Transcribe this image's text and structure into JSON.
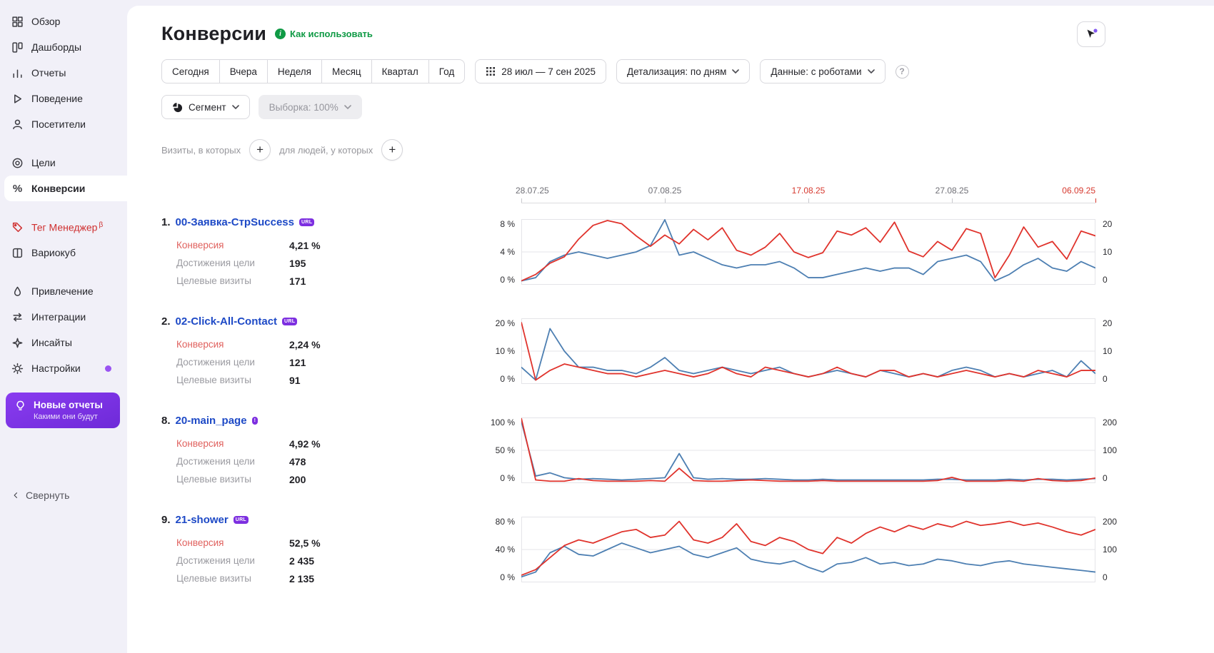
{
  "colors": {
    "red_line": "#e0332c",
    "blue_line": "#4d7fb2",
    "link": "#1d49c6",
    "accent_purple": "#7d2fe0",
    "highlight_date": "#d6392f",
    "green": "#0f9a45"
  },
  "sidebar": {
    "items": [
      {
        "label": "Обзор",
        "icon": "grid-icon"
      },
      {
        "label": "Дашборды",
        "icon": "dashboards-icon"
      },
      {
        "label": "Отчеты",
        "icon": "bar-chart-icon"
      },
      {
        "label": "Поведение",
        "icon": "play-icon"
      },
      {
        "label": "Посетители",
        "icon": "person-icon"
      },
      {
        "label": "Цели",
        "icon": "target-icon"
      },
      {
        "label": "Конверсии",
        "icon": "percent-icon",
        "active": true
      },
      {
        "label": "Тег Менеджер",
        "icon": "tag-icon",
        "beta": "β"
      },
      {
        "label": "Вариокуб",
        "icon": "cube-icon"
      },
      {
        "label": "Привлечение",
        "icon": "flame-icon"
      },
      {
        "label": "Интеграции",
        "icon": "integrations-icon"
      },
      {
        "label": "Инсайты",
        "icon": "spark-icon"
      },
      {
        "label": "Настройки",
        "icon": "gear-icon",
        "dot": true
      }
    ],
    "promo": {
      "title": "Новые отчеты",
      "subtitle": "Какими они будут",
      "icon": "bulb-icon"
    },
    "collapse_label": "Свернуть"
  },
  "header": {
    "title": "Конверсии",
    "help_link": "Как использовать"
  },
  "toolbar": {
    "period_buttons": [
      "Сегодня",
      "Вчера",
      "Неделя",
      "Месяц",
      "Квартал",
      "Год"
    ],
    "date_range": "28 июл — 7 сен 2025",
    "detail_dropdown": "Детализация: по дням",
    "data_dropdown": "Данные: с роботами",
    "segment_button": "Сегмент",
    "sampling_button": "Выборка: 100%",
    "help_mark": "?"
  },
  "filter_builder": {
    "visits_label": "Визиты, в которых",
    "people_label": "для людей, у которых",
    "plus": "+"
  },
  "axis_dates": [
    {
      "label": "28.07.25",
      "highlight": false
    },
    {
      "label": "07.08.25",
      "highlight": false
    },
    {
      "label": "17.08.25",
      "highlight": true
    },
    {
      "label": "27.08.25",
      "highlight": false
    },
    {
      "label": "06.09.25",
      "highlight": true
    }
  ],
  "stat_labels": {
    "conversion": "Конверсия",
    "achievements": "Достижения цели",
    "target_visits": "Целевые визиты"
  },
  "goals": [
    {
      "num": "1.",
      "name": "00-Заявка-СтрSuccess",
      "badge": "URL",
      "conversion": "4,21 %",
      "achievements": "195",
      "target_visits": "171"
    },
    {
      "num": "2.",
      "name": "02-Click-All-Contact",
      "badge": "URL",
      "conversion": "2,24 %",
      "achievements": "121",
      "target_visits": "91"
    },
    {
      "num": "8.",
      "name": "20-main_page",
      "badge": "!",
      "conversion": "4,92 %",
      "achievements": "478",
      "target_visits": "200"
    },
    {
      "num": "9.",
      "name": "21-shower",
      "badge": "URL",
      "conversion": "52,5 %",
      "achievements": "2 435",
      "target_visits": "2 135"
    }
  ],
  "chart_data": [
    {
      "type": "line",
      "goal": "00-Заявка-СтрSuccess",
      "x_labels": [
        "28.07.25",
        "07.08.25",
        "17.08.25",
        "27.08.25",
        "06.09.25"
      ],
      "left_ticks": [
        "8 %",
        "4 %",
        "0 %"
      ],
      "right_ticks": [
        "20",
        "10",
        "0"
      ],
      "left_max": 8,
      "right_max": 20,
      "series": [
        {
          "name": "Конверсия",
          "axis": "left",
          "color": "#e0332c",
          "values": [
            0.4,
            1.2,
            2.6,
            3.4,
            5.6,
            7.3,
            7.9,
            7.5,
            6.0,
            4.7,
            6.1,
            5.0,
            6.8,
            5.5,
            7.0,
            4.2,
            3.6,
            4.6,
            6.3,
            4.0,
            3.3,
            3.9,
            6.6,
            6.1,
            7.0,
            5.2,
            7.7,
            4.1,
            3.4,
            5.3,
            4.2,
            6.9,
            6.3,
            0.8,
            3.6,
            7.1,
            4.6,
            5.3,
            3.1,
            6.6,
            6.0
          ]
        },
        {
          "name": "Достижения цели",
          "axis": "right",
          "color": "#4d7fb2",
          "values": [
            1,
            2,
            7,
            9,
            10,
            9,
            8,
            9,
            10,
            12,
            20,
            9,
            10,
            8,
            6,
            5,
            6,
            6,
            7,
            5,
            2,
            2,
            3,
            4,
            5,
            4,
            5,
            5,
            3,
            7,
            8,
            9,
            7,
            1,
            3,
            6,
            8,
            5,
            4,
            7,
            5
          ]
        }
      ]
    },
    {
      "type": "line",
      "goal": "02-Click-All-Contact",
      "x_labels": [
        "28.07.25",
        "07.08.25",
        "17.08.25",
        "27.08.25",
        "06.09.25"
      ],
      "left_ticks": [
        "20 %",
        "10 %",
        "0 %"
      ],
      "right_ticks": [
        "20",
        "10",
        "0"
      ],
      "left_max": 20,
      "right_max": 20,
      "series": [
        {
          "name": "Конверсия",
          "axis": "left",
          "color": "#e0332c",
          "values": [
            19,
            1,
            4,
            6,
            5,
            4,
            3,
            3,
            2,
            3,
            4,
            3,
            2,
            3,
            5,
            3,
            2,
            5,
            4,
            3,
            2,
            3,
            5,
            3,
            2,
            4,
            4,
            2,
            3,
            2,
            3,
            4,
            3,
            2,
            3,
            2,
            4,
            3,
            2,
            4,
            4
          ]
        },
        {
          "name": "Достижения цели",
          "axis": "right",
          "color": "#4d7fb2",
          "values": [
            5,
            1,
            17,
            10,
            5,
            5,
            4,
            4,
            3,
            5,
            8,
            4,
            3,
            4,
            5,
            4,
            3,
            4,
            5,
            3,
            2,
            3,
            4,
            3,
            2,
            4,
            3,
            2,
            3,
            2,
            4,
            5,
            4,
            2,
            3,
            2,
            3,
            4,
            2,
            7,
            3
          ]
        }
      ]
    },
    {
      "type": "line",
      "goal": "20-main_page",
      "x_labels": [
        "28.07.25",
        "07.08.25",
        "17.08.25",
        "27.08.25",
        "06.09.25"
      ],
      "left_ticks": [
        "100 %",
        "50 %",
        "0 %"
      ],
      "right_ticks": [
        "200",
        "100",
        "0"
      ],
      "left_max": 100,
      "right_max": 200,
      "series": [
        {
          "name": "Конверсия",
          "axis": "left",
          "color": "#e0332c",
          "values": [
            100,
            4,
            2,
            2,
            6,
            3,
            2,
            2,
            2,
            3,
            2,
            22,
            3,
            2,
            2,
            3,
            4,
            3,
            2,
            2,
            2,
            3,
            2,
            2,
            2,
            2,
            2,
            2,
            2,
            3,
            8,
            2,
            2,
            2,
            3,
            2,
            6,
            3,
            2,
            3,
            7
          ]
        },
        {
          "name": "Достижения цели",
          "axis": "right",
          "color": "#4d7fb2",
          "values": [
            190,
            20,
            30,
            15,
            10,
            12,
            10,
            8,
            10,
            12,
            15,
            90,
            15,
            10,
            12,
            10,
            10,
            12,
            10,
            8,
            8,
            10,
            8,
            8,
            8,
            8,
            8,
            8,
            8,
            10,
            10,
            8,
            8,
            8,
            10,
            8,
            10,
            10,
            8,
            10,
            12
          ]
        }
      ]
    },
    {
      "type": "line",
      "goal": "21-shower",
      "x_labels": [
        "28.07.25",
        "07.08.25",
        "17.08.25",
        "27.08.25",
        "06.09.25"
      ],
      "left_ticks": [
        "80 %",
        "40 %",
        "0 %"
      ],
      "right_ticks": [
        "200",
        "100",
        "0"
      ],
      "left_max": 80,
      "right_max": 200,
      "series": [
        {
          "name": "Конверсия",
          "axis": "left",
          "color": "#e0332c",
          "values": [
            8,
            15,
            30,
            45,
            52,
            48,
            55,
            62,
            65,
            55,
            58,
            75,
            52,
            48,
            55,
            72,
            50,
            45,
            55,
            50,
            40,
            35,
            55,
            48,
            60,
            68,
            62,
            70,
            65,
            72,
            68,
            75,
            70,
            72,
            75,
            70,
            73,
            68,
            62,
            58,
            65
          ]
        },
        {
          "name": "Достижения цели",
          "axis": "right",
          "color": "#4d7fb2",
          "values": [
            15,
            30,
            90,
            110,
            85,
            80,
            100,
            120,
            105,
            90,
            100,
            110,
            85,
            75,
            90,
            105,
            70,
            60,
            55,
            65,
            45,
            30,
            55,
            60,
            75,
            55,
            60,
            50,
            55,
            70,
            65,
            55,
            50,
            60,
            65,
            55,
            50,
            45,
            40,
            35,
            30
          ]
        }
      ]
    }
  ]
}
